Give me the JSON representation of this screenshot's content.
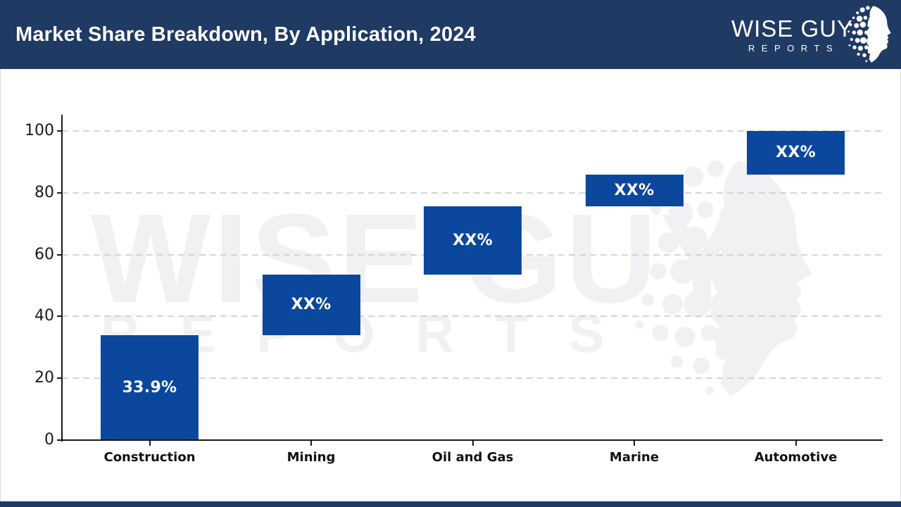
{
  "header": {
    "title": "Market Share Breakdown, By Application, 2024",
    "logo": {
      "line1": "WISE GUY",
      "line2": "REPORTS"
    }
  },
  "watermark": {
    "line1": "WISE GUY",
    "line2": "REPORTS"
  },
  "colors": {
    "bar": "#0b479c",
    "header_bg": "#1f3a63",
    "footer_bg": "#1f3a63",
    "bar_label": "#ffffff",
    "gridline": "#d4d4d4",
    "axis_text": "#1a1a1a",
    "watermark": "#f1f1f4"
  },
  "chart_data": {
    "type": "bar",
    "subtype": "waterfall",
    "title": "Market Share Breakdown, By Application, 2024",
    "categories": [
      "Construction",
      "Mining",
      "Oil and Gas",
      "Marine",
      "Automotive"
    ],
    "segments": [
      {
        "category": "Construction",
        "start": 0,
        "end": 33.9,
        "value": 33.9,
        "label": "33.9%"
      },
      {
        "category": "Mining",
        "start": 33.9,
        "end": 53.6,
        "value": 19.7,
        "label": "XX%"
      },
      {
        "category": "Oil and Gas",
        "start": 53.6,
        "end": 75.6,
        "value": 22.0,
        "label": "XX%"
      },
      {
        "category": "Marine",
        "start": 75.6,
        "end": 85.9,
        "value": 10.3,
        "label": "XX%"
      },
      {
        "category": "Automotive",
        "start": 85.9,
        "end": 100,
        "value": 14.1,
        "label": "XX%"
      }
    ],
    "xlabel": "",
    "ylabel": "",
    "yticks": [
      0,
      20,
      40,
      60,
      80,
      100
    ],
    "ylim": [
      0,
      105
    ],
    "grid": "horizontal-dashed",
    "legend": "none",
    "bar_color": "#0b479c",
    "label_color": "#ffffff"
  }
}
